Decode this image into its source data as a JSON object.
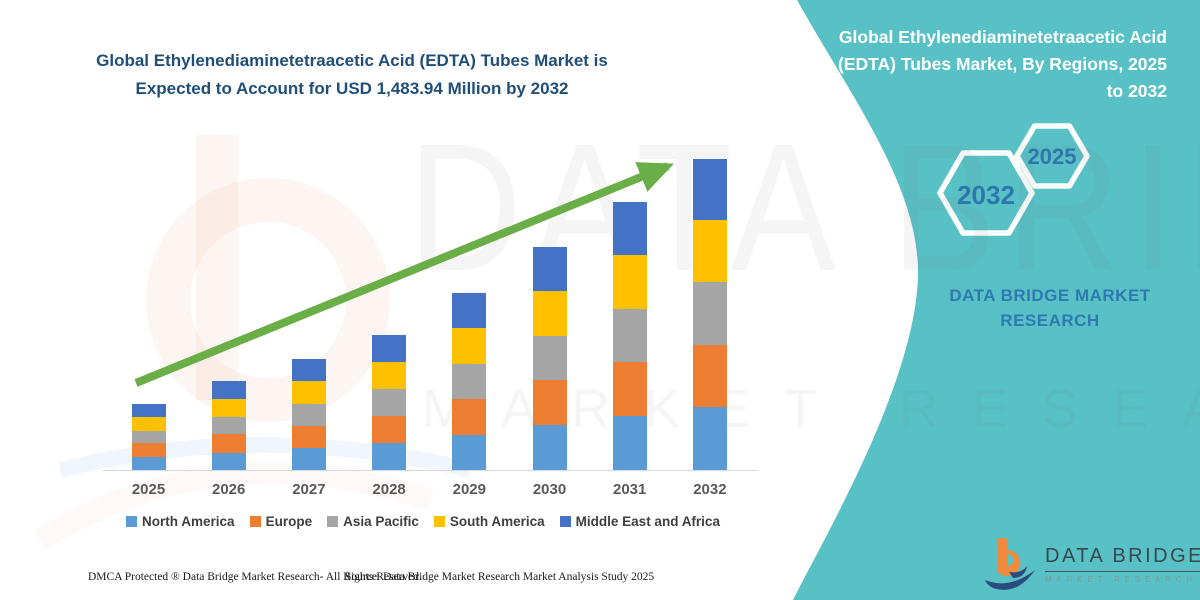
{
  "main_title": "Global Ethylenediaminetetraacetic Acid (EDTA) Tubes Market is Expected to Account for USD 1,483.94 Million by 2032",
  "right_panel": {
    "title": "Global Ethylenediaminetetraacetic Acid (EDTA) Tubes Market, By Regions, 2025 to 2032",
    "bg_color": "#58C1C5",
    "text_color": "#2E77AE",
    "hexagons": [
      {
        "label": "2032"
      },
      {
        "label": "2025"
      }
    ],
    "brand_text": "DATA BRIDGE MARKET RESEARCH"
  },
  "chart_data": {
    "type": "bar",
    "stacked": true,
    "unit": "USD Million",
    "categories": [
      "2025",
      "2026",
      "2027",
      "2028",
      "2029",
      "2030",
      "2031",
      "2032"
    ],
    "series": [
      {
        "name": "North America",
        "color": "#5B9BD5",
        "values": [
          68,
          88,
          110,
          132,
          173,
          218,
          262,
          303
        ]
      },
      {
        "name": "Europe",
        "color": "#ED7D31",
        "values": [
          64,
          86,
          106,
          130,
          170,
          213,
          256,
          295
        ]
      },
      {
        "name": "Asia Pacific",
        "color": "#A5A5A5",
        "values": [
          57,
          82,
          104,
          127,
          167,
          211,
          254,
          300
        ]
      },
      {
        "name": "South America",
        "color": "#FFC000",
        "values": [
          67,
          88,
          108,
          130,
          170,
          214,
          256,
          295
        ]
      },
      {
        "name": "Middle East and Africa",
        "color": "#4472C4",
        "values": [
          64,
          84,
          105,
          128,
          167,
          210,
          252,
          290.94
        ]
      }
    ],
    "totals": [
      320,
      428,
      533,
      647,
      847,
      1066,
      1280,
      1483.94
    ],
    "ylim": [
      0,
      1550
    ],
    "gridlines": false,
    "legend_position": "bottom",
    "annotations": [
      "upward green trend arrow"
    ]
  },
  "watermarks": {
    "line1": "DATA BRIDGE",
    "line2": "MARKET RESEARCH"
  },
  "footer": {
    "left": "DMCA Protected ® Data Bridge Market Research-  All Rights Reserved.",
    "source": "Source: Data Bridge Market Research  Market Analysis Study 2025"
  },
  "logo": {
    "name": "DATA BRIDGE",
    "sub": "MARKET RESEARCH"
  },
  "colors": {
    "arrow_green": "#6AAE47",
    "title_navy": "#1F4E79",
    "axis_line": "#D9D9D9"
  }
}
